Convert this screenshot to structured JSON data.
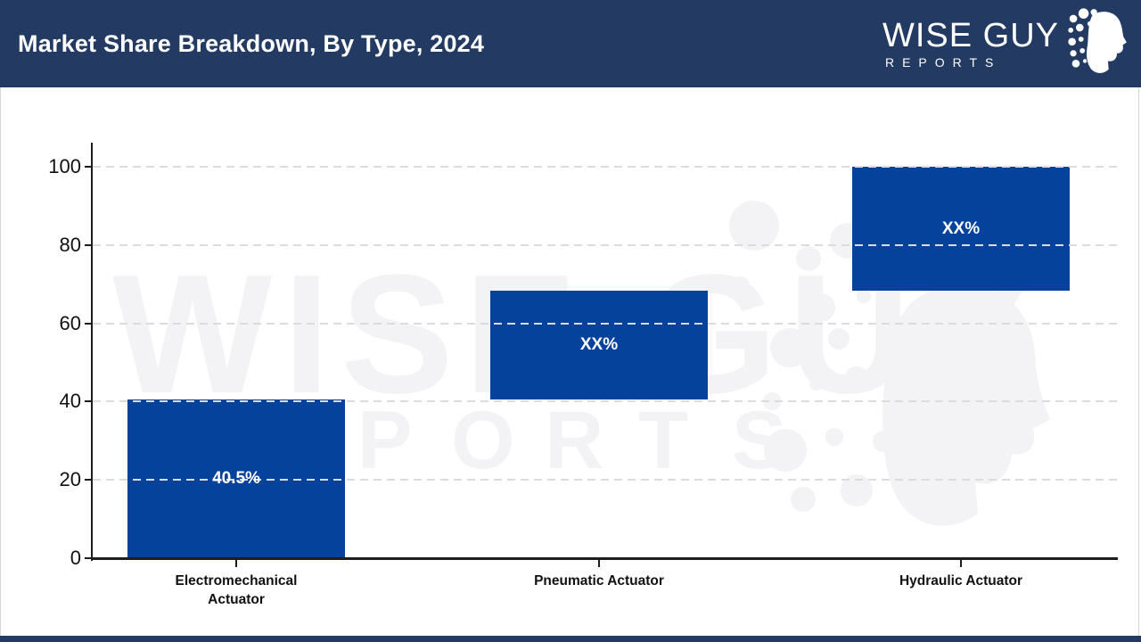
{
  "header": {
    "title": "Market Share Breakdown, By Type, 2024",
    "logo": {
      "brand_top": "WISE GUY",
      "brand_bottom": "REPORTS"
    }
  },
  "watermark": {
    "brand_top": "WISE GUY",
    "brand_bottom_letters": [
      "P",
      "O",
      "R",
      "T",
      "S"
    ]
  },
  "chart_data": {
    "type": "bar",
    "variant": "waterfall",
    "title": "Market Share Breakdown, By Type, 2024",
    "categories": [
      "Electromechanical Actuator",
      "Pneumatic Actuator",
      "Hydraulic Actuator"
    ],
    "series": [
      {
        "name": "Market share (%)",
        "segments": [
          {
            "category": "Electromechanical Actuator",
            "start": 0,
            "end": 40.5,
            "label": "40.5%"
          },
          {
            "category": "Pneumatic Actuator",
            "start": 40.5,
            "end": 68.3,
            "label": "XX%"
          },
          {
            "category": "Hydraulic Actuator",
            "start": 68.3,
            "end": 100,
            "label": "XX%"
          }
        ]
      }
    ],
    "xlabel": "",
    "ylabel": "",
    "ylim": [
      0,
      100
    ],
    "yticks": [
      0,
      20,
      40,
      60,
      80,
      100
    ],
    "grid": {
      "horizontal": true,
      "style": "dashed",
      "above_bars": true
    },
    "legend": false
  },
  "colors": {
    "header_bg": "#233a63",
    "footer_bg": "#233a63",
    "title_text": "#ffffff",
    "bar": "#05429b",
    "bar_label": "#ffffff",
    "grid": "#dcdcdf",
    "axis": "#1d1d1d",
    "tick_text": "#111111",
    "category_text": "#111111",
    "watermark": "#f3f3f5",
    "page_bg": "#ffffff"
  }
}
